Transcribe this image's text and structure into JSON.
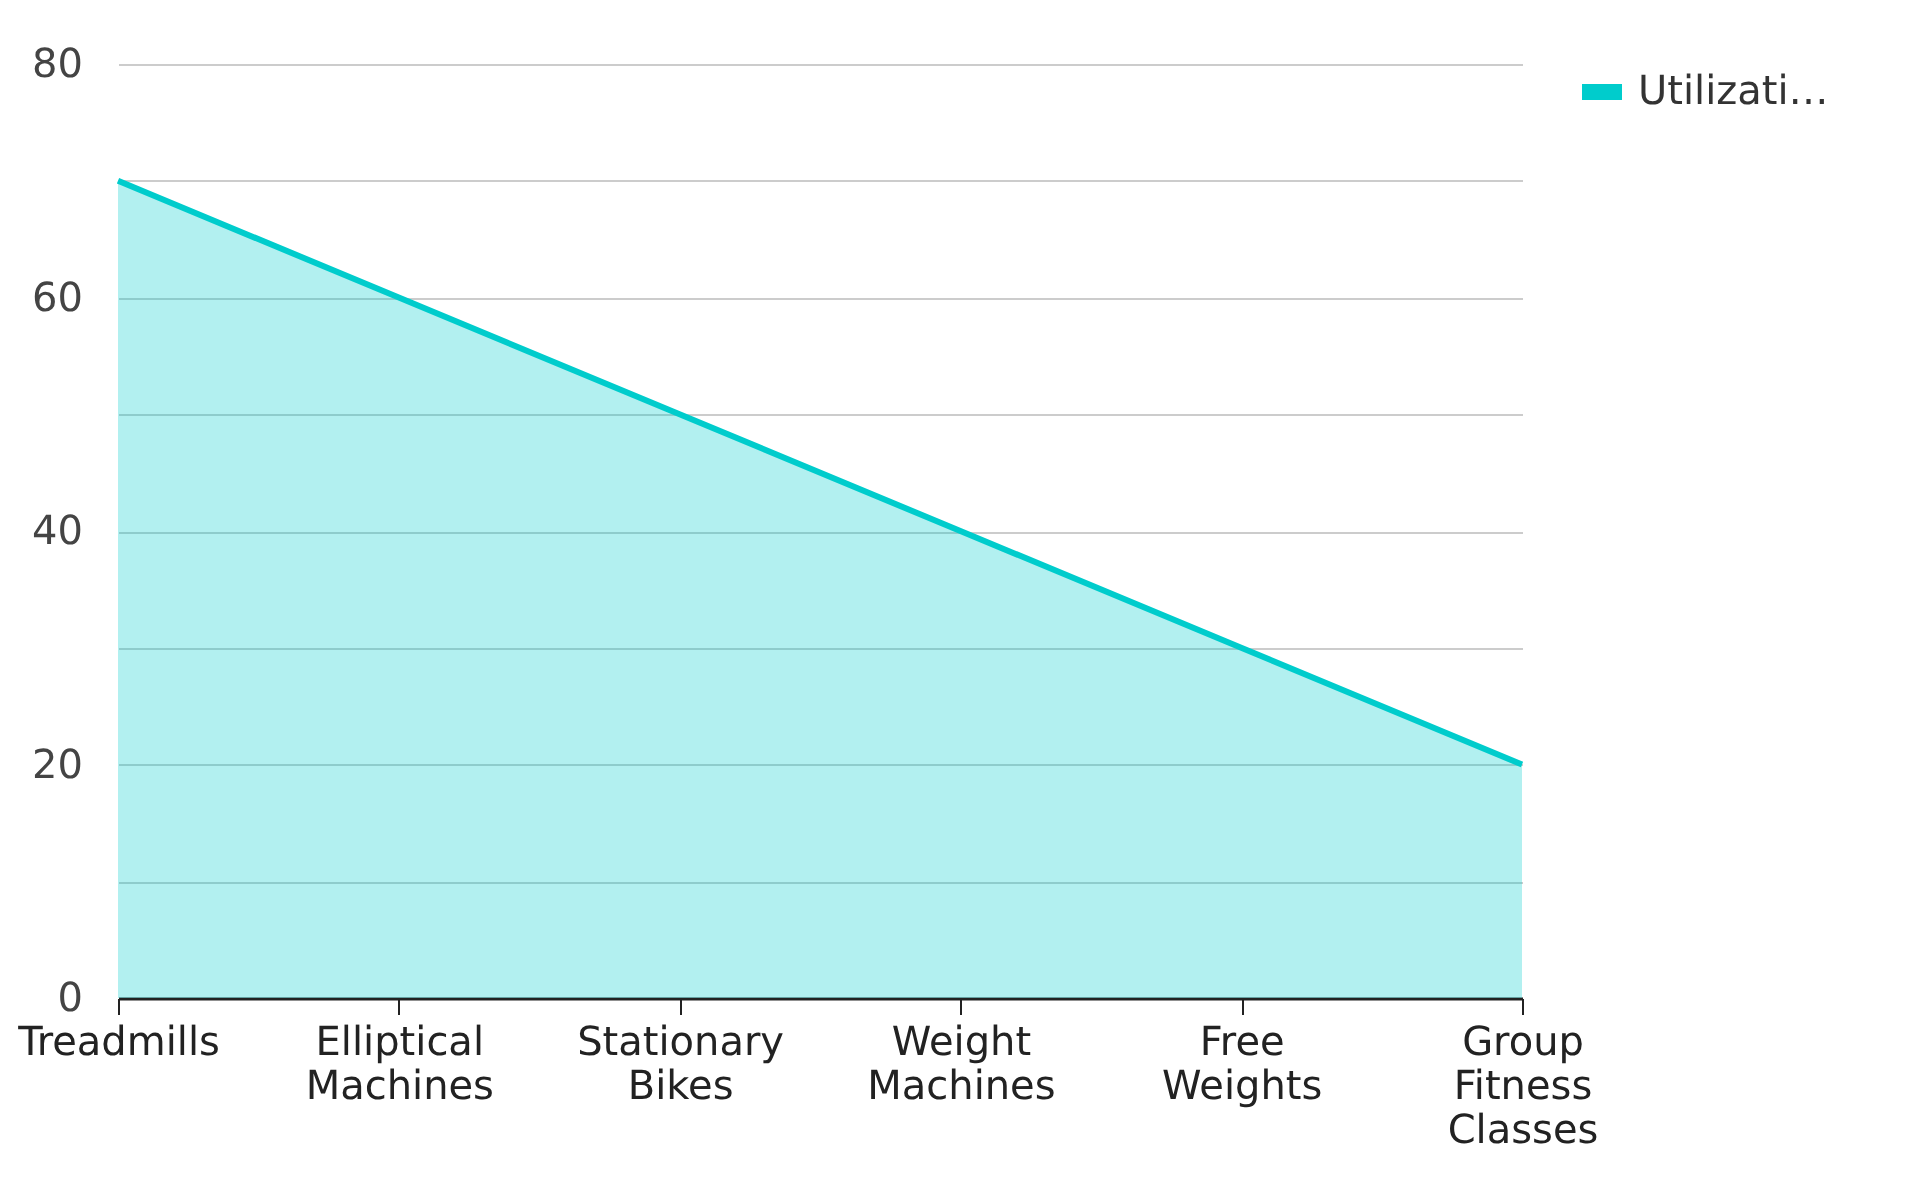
{
  "chart_data": {
    "type": "area",
    "categories": [
      "Treadmills",
      "Elliptical Machines",
      "Stationary Bikes",
      "Weight Machines",
      "Free Weights",
      "Group Fitness Classes"
    ],
    "series": [
      {
        "name": "Utilizati…",
        "color": "#00cccc",
        "values": [
          70,
          60,
          50,
          40,
          30,
          20
        ]
      }
    ],
    "ylim": [
      0,
      80
    ],
    "yticks": [
      0,
      {
        "value": 10,
        "label": null
      },
      20,
      {
        "value": 30,
        "label": null
      },
      40,
      {
        "value": 50,
        "label": null
      },
      60,
      {
        "value": 70,
        "label": null
      },
      80
    ],
    "grid": "y",
    "legend": "top right"
  }
}
